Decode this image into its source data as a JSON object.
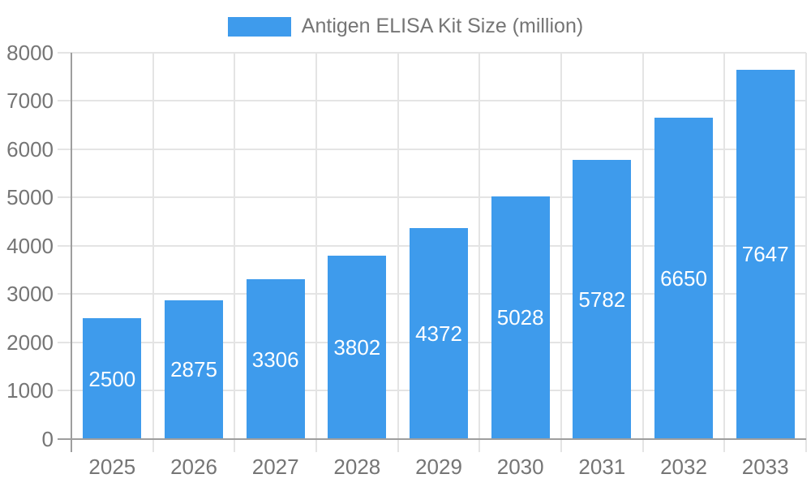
{
  "legend": {
    "label": "Antigen ELISA Kit Size (million)"
  },
  "chart_data": {
    "type": "bar",
    "title": "Antigen ELISA Kit Size (million)",
    "categories": [
      "2025",
      "2026",
      "2027",
      "2028",
      "2029",
      "2030",
      "2031",
      "2032",
      "2033"
    ],
    "values": [
      2500,
      2875,
      3306,
      3802,
      4372,
      5028,
      5782,
      6650,
      7647
    ],
    "xlabel": "",
    "ylabel": "",
    "ylim": [
      0,
      8000
    ],
    "yticks": [
      0,
      1000,
      2000,
      3000,
      4000,
      5000,
      6000,
      7000,
      8000
    ],
    "grid": true,
    "legend_position": "top-center",
    "bar_color": "#3e9bec",
    "value_label_color": "#ffffff",
    "axis_label_color": "#757575",
    "grid_color": "#e4e4e4",
    "axis_line_color": "#9e9e9e",
    "background_color": "#ffffff"
  }
}
